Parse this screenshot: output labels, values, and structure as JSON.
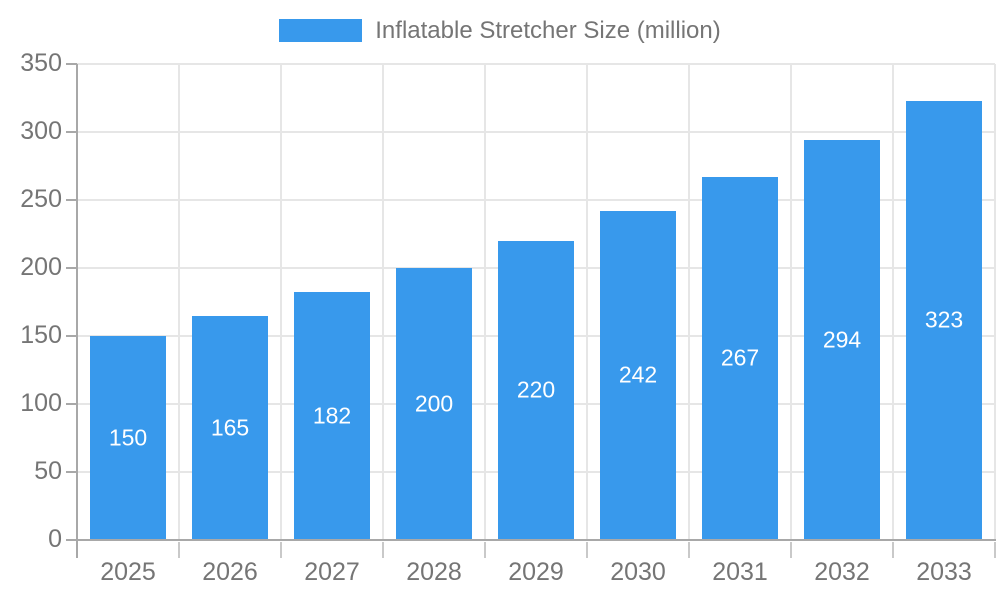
{
  "chart_data": {
    "type": "bar",
    "title": "",
    "legend_position": "top",
    "legend_label": "Inflatable Stretcher Size (million)",
    "categories": [
      "2025",
      "2026",
      "2027",
      "2028",
      "2029",
      "2030",
      "2031",
      "2032",
      "2033"
    ],
    "series": [
      {
        "name": "Inflatable Stretcher Size (million)",
        "values": [
          150,
          165,
          182,
          200,
          220,
          242,
          267,
          294,
          323
        ]
      }
    ],
    "xlabel": "",
    "ylabel": "",
    "ylim": [
      0,
      350
    ],
    "yticks": [
      0,
      50,
      100,
      150,
      200,
      250,
      300,
      350
    ],
    "grid": true,
    "value_label_position": "inside-center",
    "colors": {
      "bar": "#3899EC",
      "grid": "#E6E6E6",
      "axis": "#A8A8A8",
      "x_tick": "#C9C9C9",
      "tick_label": "#757575",
      "value_label": "#FFFFFF",
      "legend_text": "#757575"
    }
  }
}
